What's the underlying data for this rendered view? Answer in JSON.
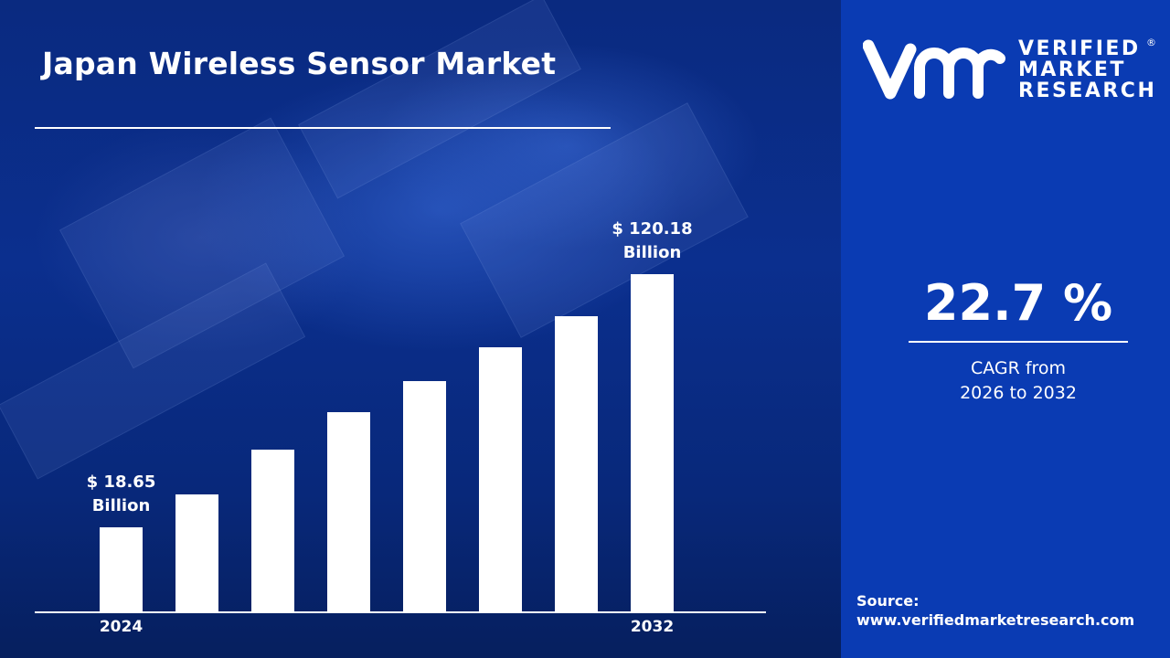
{
  "title": "Japan Wireless Sensor Market",
  "brand": {
    "logo_mark": "vmr",
    "name_lines": [
      "VERIFIED",
      "MARKET",
      "RESEARCH"
    ],
    "registered": "®"
  },
  "colors": {
    "panel": "#0a3bb3",
    "background": "#0b2f8e",
    "bars": "#ffffff"
  },
  "cagr": {
    "value": "22.7 %",
    "label_line1": "CAGR from",
    "label_line2": "2026 to 2032"
  },
  "source": {
    "label": "Source:",
    "url": "www.verifiedmarketresearch.com"
  },
  "chart_data": {
    "type": "bar",
    "title": "Japan Wireless Sensor Market",
    "categories": [
      "2024",
      "",
      "",
      "",
      "",
      "",
      "",
      "2032"
    ],
    "values": [
      18.65,
      31.8,
      49.8,
      64.8,
      77.3,
      90.8,
      103.3,
      120.18
    ],
    "data_labels": [
      {
        "index": 0,
        "line1": "$ 18.65",
        "line2": "Billion"
      },
      {
        "index": 7,
        "line1": "$ 120.18",
        "line2": "Billion"
      }
    ],
    "unit": "USD Billion",
    "ylim": [
      -15.1,
      120.18
    ],
    "grid": false,
    "legend": "none"
  }
}
